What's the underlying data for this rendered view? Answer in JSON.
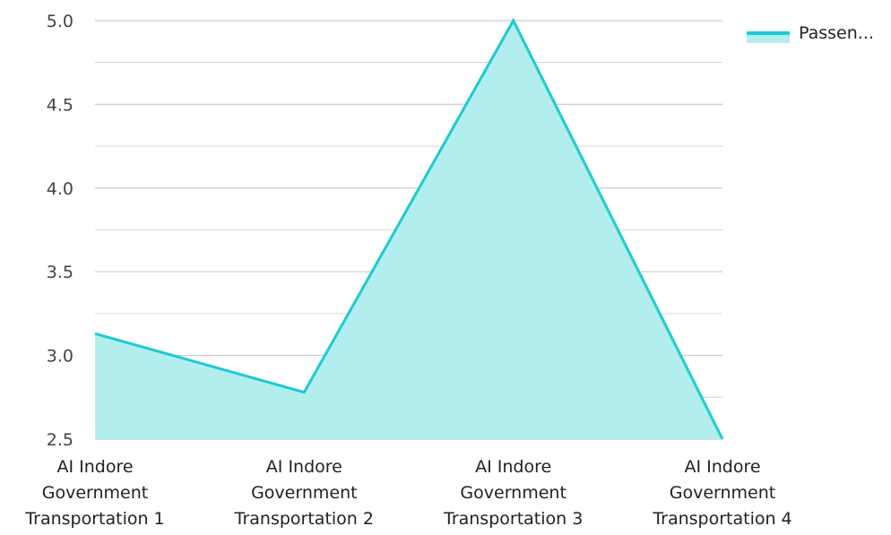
{
  "chart_data": {
    "type": "area",
    "categories": [
      [
        "AI Indore",
        "Government",
        "Transportation 1"
      ],
      [
        "AI Indore",
        "Government",
        "Transportation 2"
      ],
      [
        "AI Indore",
        "Government",
        "Transportation 3"
      ],
      [
        "AI Indore",
        "Government",
        "Transportation 4"
      ]
    ],
    "series": [
      {
        "name": "Passen...",
        "values": [
          3.13,
          2.78,
          5.0,
          2.5
        ]
      }
    ],
    "ylim": [
      2.5,
      5.0
    ],
    "yticks": [
      "2.5",
      "3.0",
      "3.5",
      "4.0",
      "4.5",
      "5.0"
    ],
    "grid": true,
    "legend_position": "top-right",
    "colors": {
      "line": "#1ECAD3",
      "fill": "#B2EEEE",
      "grid": "#CCCCCC"
    }
  }
}
